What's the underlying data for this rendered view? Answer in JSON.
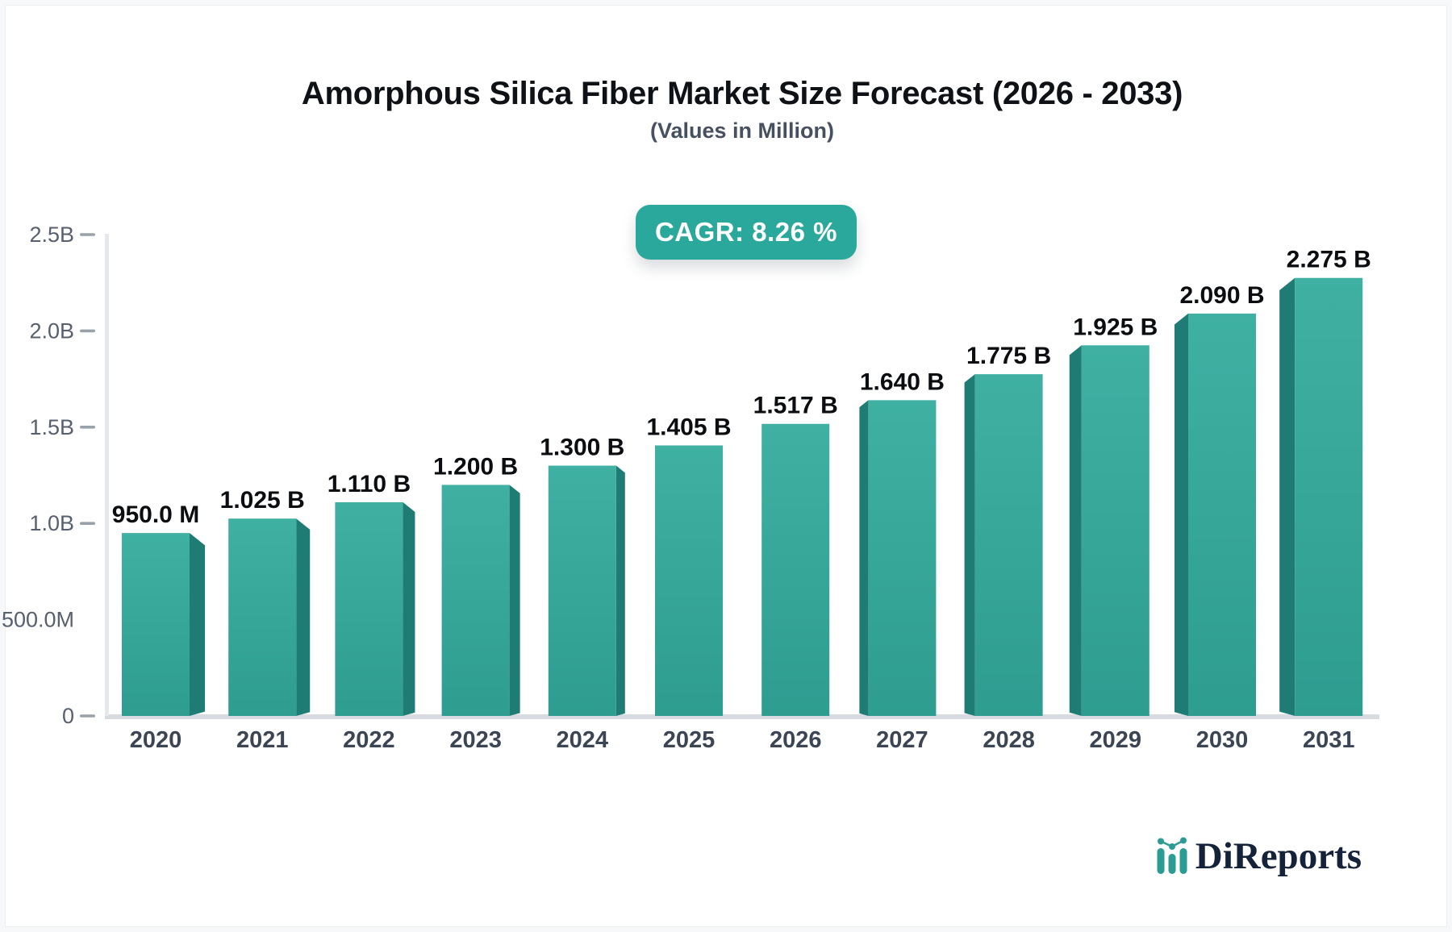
{
  "chart_data": {
    "type": "bar",
    "title": "Amorphous Silica Fiber Market Size Forecast (2026 - 2033)",
    "subtitle": "(Values in Million)",
    "unit": "Million",
    "categories": [
      "2020",
      "2021",
      "2022",
      "2023",
      "2024",
      "2025",
      "2026",
      "2027",
      "2028",
      "2029",
      "2030",
      "2031"
    ],
    "values_millions": [
      950,
      1025,
      1110,
      1200,
      1300,
      1405,
      1517,
      1640,
      1775,
      1925,
      2090,
      2275
    ],
    "bar_labels": [
      "950.0 M",
      "1.025 B",
      "1.110 B",
      "1.200 B",
      "1.300 B",
      "1.405 B",
      "1.517 B",
      "1.640 B",
      "1.775 B",
      "1.925 B",
      "2.090 B",
      "2.275 B"
    ],
    "y_axis": {
      "ylim_millions": [
        0,
        2500
      ],
      "ticks": [
        {
          "label": "2.5B",
          "value": 2500,
          "dash": true
        },
        {
          "label": "2.0B",
          "value": 2000,
          "dash": true
        },
        {
          "label": "1.5B",
          "value": 1500,
          "dash": true
        },
        {
          "label": "1.0B",
          "value": 1000,
          "dash": true
        },
        {
          "label": "500.0M",
          "value": 500,
          "dash": false
        },
        {
          "label": "0",
          "value": 0,
          "dash": true
        }
      ]
    },
    "legend": "none",
    "grid": "off",
    "colors": {
      "bar_front_top": "#3fb0a2",
      "bar_front_bottom": "#2e9d90",
      "bar_side": "#1e7c74",
      "axis_line": "#e4e7eb",
      "baseline": "#d8dce1",
      "tick_dash": "#99a1ab",
      "y_label": "#57606e",
      "x_label": "#3c4553",
      "value_label": "#0b0d11",
      "badge_bg": "#2ba89c"
    }
  },
  "cagr": {
    "label": "CAGR: 8.26 %",
    "value_percent": 8.26
  },
  "branding": {
    "logo_text": "DiReports"
  }
}
